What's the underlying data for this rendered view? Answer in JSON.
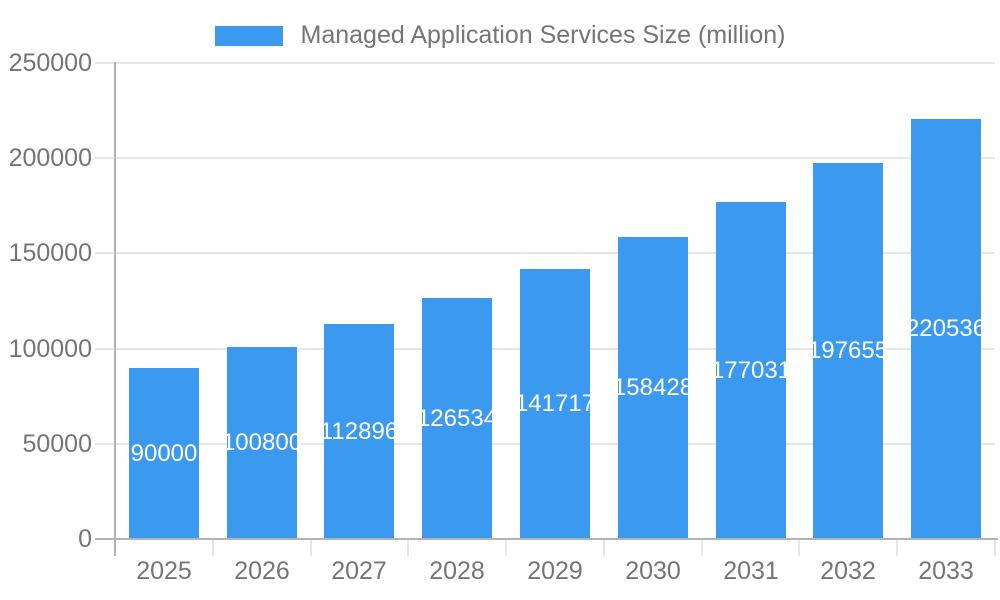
{
  "chart_data": {
    "type": "bar",
    "title": "Managed Application Services Size (million)",
    "categories": [
      "2025",
      "2026",
      "2027",
      "2028",
      "2029",
      "2030",
      "2031",
      "2032",
      "2033"
    ],
    "series": [
      {
        "name": "Managed Application Services Size (million)",
        "values": [
          90000,
          100800,
          112896,
          126534,
          141717,
          158428,
          177031,
          197655,
          220536
        ]
      }
    ],
    "value_labels": [
      "90000",
      "100800",
      "112896",
      "126534",
      "141717",
      "158428",
      "177031",
      "197655",
      "220536"
    ],
    "xlabel": "",
    "ylabel": "",
    "ylim": [
      0,
      250000
    ],
    "yticks": [
      0,
      50000,
      100000,
      150000,
      200000,
      250000
    ],
    "ytick_labels": [
      "0",
      "50000",
      "100000",
      "150000",
      "200000",
      "250000"
    ],
    "grid": true,
    "legend_position": "top",
    "colors": {
      "bar": "#3b99f0",
      "value_label": "#ffffff",
      "axis_text": "#757575",
      "gridline": "#e6e6e6",
      "axis_line": "#b3b3b3",
      "background": "#ffffff"
    }
  }
}
